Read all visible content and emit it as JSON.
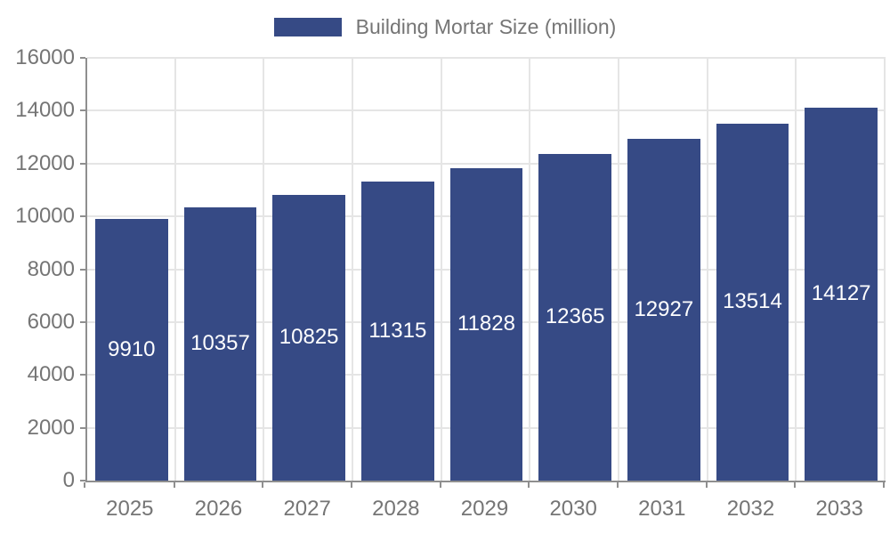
{
  "chart_data": {
    "type": "bar",
    "title": "Building Mortar Size (million)",
    "categories": [
      "2025",
      "2026",
      "2027",
      "2028",
      "2029",
      "2030",
      "2031",
      "2032",
      "2033"
    ],
    "values": [
      9910,
      10357,
      10825,
      11315,
      11828,
      12365,
      12927,
      13514,
      14127
    ],
    "xlabel": "",
    "ylabel": "",
    "ylim": [
      0,
      16000
    ],
    "ytick_step": 2000,
    "ytick_labels": [
      "0",
      "2000",
      "4000",
      "6000",
      "8000",
      "10000",
      "12000",
      "14000",
      "16000"
    ],
    "grid": true,
    "legend_position": "top-center",
    "bar_color": "#364A85",
    "value_label_color": "#ffffff",
    "axis_text_color": "#757575",
    "axis_line_color": "#8f8f8f",
    "grid_color": "#e5e5e5",
    "background_color": "#ffffff"
  }
}
